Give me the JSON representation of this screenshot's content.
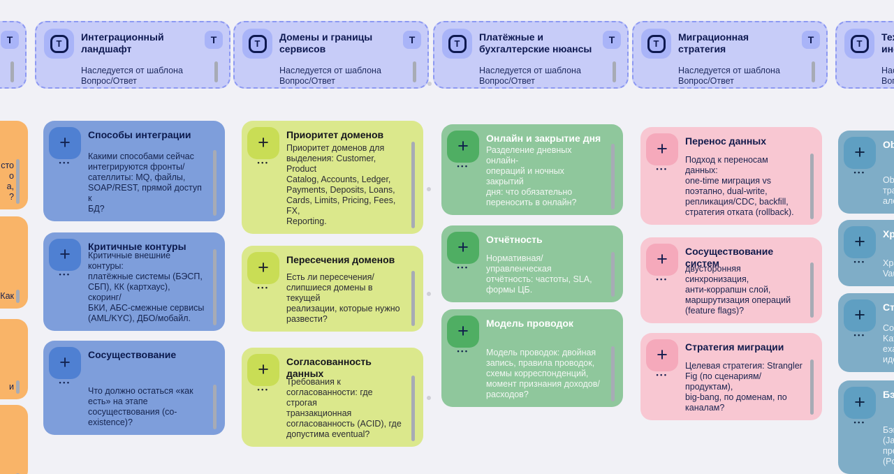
{
  "canvas": {
    "background": "#f1f1f6",
    "scrollbar_color": "#a7abb5",
    "connector_dot_color": "#cfcfd6"
  },
  "icons": {
    "template_letter": "T",
    "plus": "+",
    "more": "•••"
  },
  "header_theme": {
    "bg": "#c7ccf8",
    "border": "#8d99f2",
    "tile": "#a9b4f8",
    "text": "#0e1950",
    "subtitle": "#1d2a5e"
  },
  "themes": {
    "orange": {
      "bg": "#f9b468",
      "tile": "#f5a13e",
      "ink": "#17204e",
      "title": "#17204e",
      "body": "#17204e"
    },
    "blue": {
      "bg": "#7e9edb",
      "tile": "#4f80d2",
      "ink": "#132350",
      "title": "#0c1a4d",
      "body": "#15244f"
    },
    "lime": {
      "bg": "#dbe88c",
      "tile": "#c9dd55",
      "ink": "#20242c",
      "title": "#15151d",
      "body": "#2b2b33"
    },
    "green": {
      "bg": "#8fc79c",
      "tile": "#4fae63",
      "ink": "#0f1f4b",
      "title": "#ffffff",
      "body": "#f2f7f3"
    },
    "pink": {
      "bg": "#f8c7d2",
      "tile": "#f5a9bb",
      "ink": "#131c4e",
      "title": "#111a4b",
      "body": "#1a234f"
    },
    "teal": {
      "bg": "#7fadc7",
      "tile": "#5f9fc2",
      "ink": "#0e2240",
      "title": "#ffffff",
      "body": "#eaf2f7"
    }
  },
  "columns": [
    {
      "id": "left-partial",
      "theme": "orange",
      "header": {
        "title": "",
        "subtitle": "",
        "badge": "T"
      },
      "cards": [
        {
          "title": "",
          "body": "сто\nо\nа,\n?"
        },
        {
          "title": "",
          "body": "Как"
        },
        {
          "title": "",
          "body": "и"
        },
        {
          "title": "",
          "body": ""
        }
      ]
    },
    {
      "id": "integration-landscape",
      "theme": "blue",
      "header": {
        "title": "Интеграционный\nландшафт",
        "subtitle": "Наследуется от шаблона\nВопрос/Ответ",
        "badge": "T"
      },
      "cards": [
        {
          "title": "Способы интеграции",
          "body": "Какими способами сейчас\nинтегрируются фронты/\nсателлиты: MQ, файлы,\nSOAP/REST, прямой доступ к\nБД?"
        },
        {
          "title": "Критичные контуры",
          "body": "Критичные внешние контуры:\nплатёжные системы (БЭСП,\nСБП), КК (картхаус), скоринг/\nБКИ, АБС-смежные сервисы\n(AML/KYC), ДБО/мобайл."
        },
        {
          "title": "Сосуществование",
          "body": "Что должно остаться «как\nесть» на этапе\nсосуществования (co-\nexistence)?"
        }
      ]
    },
    {
      "id": "domains-and-service-boundaries",
      "theme": "lime",
      "header": {
        "title": "Домены и границы\nсервисов",
        "subtitle": "Наследуется от шаблона\nВопрос/Ответ",
        "badge": "T"
      },
      "cards": [
        {
          "title": "Приоритет доменов",
          "body": "Приоритет доменов для\nвыделения: Customer, Product\nCatalog, Accounts, Ledger,\nPayments, Deposits, Loans,\nCards, Limits, Pricing, Fees, FX,\nReporting."
        },
        {
          "title": "Пересечения доменов",
          "body": "Есть ли пересечения/\nслипшиеся домены в текущей\nреализации, которые нужно\nразвести?"
        },
        {
          "title": "Согласованность данных",
          "body": "Требования к\nсогласованности: где строгая\nтранзакционная\nсогласованность (ACID), где\nдопустима eventual?"
        }
      ]
    },
    {
      "id": "payment-and-accounting-nuances",
      "theme": "green",
      "header": {
        "title": "Платёжные и\nбухгалтерские нюансы",
        "subtitle": "Наследуется от шаблона\nВопрос/Ответ",
        "badge": "T"
      },
      "cards": [
        {
          "title": "Онлайн и закрытие дня",
          "body": "Разделение дневных онлайн-\nопераций и ночных закрытий\nдня: что обязательно\nпереносить в онлайн?"
        },
        {
          "title": "Отчётность",
          "body": "Нормативная/управленческая\nотчётность: частоты, SLA,\nформы ЦБ."
        },
        {
          "title": "Модель проводок",
          "body": "Модель проводок: двойная\nзапись, правила проводок,\nсхемы корреспонденций,\nмомент признания доходов/\nрасходов?"
        }
      ]
    },
    {
      "id": "migration-strategy",
      "theme": "pink",
      "header": {
        "title": "Миграционная стратегия",
        "subtitle": "Наследуется от шаблона\nВопрос/Ответ",
        "badge": "T"
      },
      "cards": [
        {
          "title": "Перенос данных",
          "body": "Подход к переносам данных:\none-time миграция vs\nпоэтапно, dual-write,\nрепликация/CDC, backfill,\nстратегия отката (rollback)."
        },
        {
          "title": "Сосуществование систем",
          "body": "двусторонняя синхронизация,\nанти-коррапшн слой,\nмаршрутизация операций\n(feature flags)?"
        },
        {
          "title": "Стратегия миграции",
          "body": "Целевая стратегия: Strangler\nFig (по сценариям/продуктам),\nbig-bang, по доменам, по\nканалам?"
        }
      ]
    },
    {
      "id": "right-partial",
      "theme": "teal",
      "header": {
        "title": "Тех\nинф",
        "subtitle": "Нас\nВоп",
        "badge": "T"
      },
      "cards": [
        {
          "title": "Obs",
          "body": "Obs\nтра\nале"
        },
        {
          "title": "Хра",
          "body": "Хра\nVau"
        },
        {
          "title": "Стр",
          "body": "Сос\nKaf\nexa\nиде"
        },
        {
          "title": "Бэк",
          "body": "Бэк\n(Jav\nпре\n(Po"
        }
      ]
    }
  ]
}
